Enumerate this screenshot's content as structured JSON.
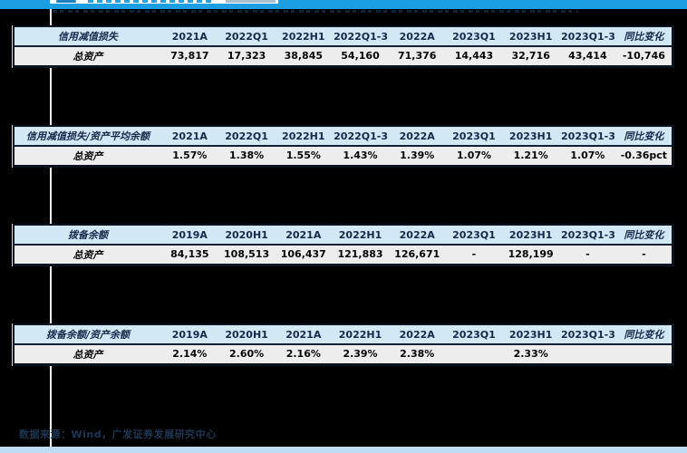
{
  "colors": {
    "page-bg": "#000000",
    "topbar": "#1b9ee2",
    "headerbg": "#d3e8f5",
    "rowbg": "#ededed",
    "border": "#0b131f",
    "header-text": "#132a4a",
    "caption": "#1f3755",
    "footerbar": "#bfddf2"
  },
  "footer": {
    "source_text": "数据来源：Wind，广发证券发展研究中心"
  },
  "tables": [
    {
      "title": "信用减值损失",
      "header": [
        "信用减值损失",
        "2021A",
        "2022Q1",
        "2022H1",
        "2022Q1-3",
        "2022A",
        "2023Q1",
        "2023H1",
        "2023Q1-3",
        "同比变化"
      ],
      "rows": [
        [
          "总资产",
          "73,817",
          "17,323",
          "38,845",
          "54,160",
          "71,376",
          "14,443",
          "32,716",
          "43,414",
          "-10,746"
        ]
      ]
    },
    {
      "title": "信用减值损失/资产平均余额",
      "header": [
        "信用减值损失/资产平均余额",
        "2021A",
        "2022Q1",
        "2022H1",
        "2022Q1-3",
        "2022A",
        "2023Q1",
        "2023H1",
        "2023Q1-3",
        "同比变化"
      ],
      "rows": [
        [
          "总资产",
          "1.57%",
          "1.38%",
          "1.55%",
          "1.43%",
          "1.39%",
          "1.07%",
          "1.21%",
          "1.07%",
          "-0.36pct"
        ]
      ]
    },
    {
      "title": "拨备余额",
      "header": [
        "拨备余额",
        "2019A",
        "2020H1",
        "2021A",
        "2022H1",
        "2022A",
        "2023Q1",
        "2023H1",
        "2023Q1-3",
        "同比变化"
      ],
      "rows": [
        [
          "总资产",
          "84,135",
          "108,513",
          "106,437",
          "121,883",
          "126,671",
          "-",
          "128,199",
          "-",
          "-"
        ]
      ]
    },
    {
      "title": "拨备余额/资产余额",
      "header": [
        "拨备余额/资产余额",
        "2019A",
        "2020H1",
        "2021A",
        "2022H1",
        "2022A",
        "2023Q1",
        "2023H1",
        "2023Q1-3",
        "同比变化"
      ],
      "rows": [
        [
          "总资产",
          "2.14%",
          "2.60%",
          "2.16%",
          "2.39%",
          "2.38%",
          "",
          "2.33%",
          "",
          ""
        ]
      ]
    }
  ]
}
